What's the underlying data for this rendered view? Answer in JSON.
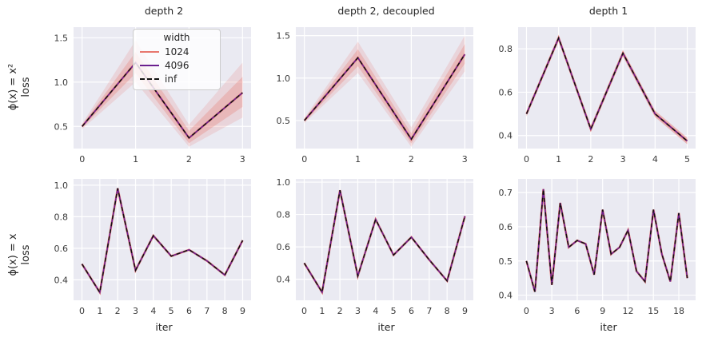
{
  "figure": {
    "legend": {
      "title": "width",
      "entries": [
        {
          "label": "1024",
          "color": "#e8776e",
          "dash": "solid"
        },
        {
          "label": "4096",
          "color": "#6a1f8f",
          "dash": "solid"
        },
        {
          "label": "inf",
          "color": "#111111",
          "dash": "dashed"
        }
      ]
    },
    "row_labels": [
      {
        "math": "ϕ(x) = x²",
        "sub": "loss"
      },
      {
        "math": "ϕ(x) = x",
        "sub": "loss"
      }
    ],
    "xlabel": "iter",
    "colors": {
      "plot_bg": "#eaeaf2",
      "grid": "#ffffff",
      "band": "#e8776e",
      "tick_text": "#3a3a3a"
    }
  },
  "chart_data": [
    {
      "type": "line",
      "title": "depth 2",
      "series_names": [
        "1024",
        "4096",
        "inf"
      ],
      "x": [
        0,
        1,
        2,
        3
      ],
      "values": [
        0.5,
        1.22,
        0.37,
        0.88
      ],
      "bands": [
        {
          "upper": [
            0.53,
            1.47,
            0.52,
            1.22
          ],
          "lower": [
            0.47,
            1.0,
            0.27,
            0.6
          ],
          "alpha": 0.18
        },
        {
          "upper": [
            0.515,
            1.34,
            0.45,
            1.06
          ],
          "lower": [
            0.485,
            1.1,
            0.31,
            0.72
          ],
          "alpha": 0.3
        }
      ],
      "xtick_vals": [
        0,
        1,
        2,
        3
      ],
      "xtick_labels": [
        "0",
        "1",
        "2",
        "3"
      ],
      "ytick_vals": [
        0.5,
        1.0,
        1.5
      ],
      "ytick_labels": [
        "0.5",
        "1.0",
        "1.5"
      ],
      "xlim": [
        -0.16,
        3.16
      ],
      "ylim": [
        0.25,
        1.62
      ]
    },
    {
      "type": "line",
      "title": "depth 2, decoupled",
      "series_names": [
        "1024",
        "4096",
        "inf"
      ],
      "x": [
        0,
        1,
        2,
        3
      ],
      "values": [
        0.5,
        1.24,
        0.28,
        1.28
      ],
      "bands": [
        {
          "upper": [
            0.53,
            1.43,
            0.42,
            1.5
          ],
          "lower": [
            0.47,
            1.06,
            0.19,
            1.08
          ],
          "alpha": 0.18
        },
        {
          "upper": [
            0.515,
            1.34,
            0.35,
            1.4
          ],
          "lower": [
            0.485,
            1.14,
            0.23,
            1.17
          ],
          "alpha": 0.3
        }
      ],
      "xtick_vals": [
        0,
        1,
        2,
        3
      ],
      "xtick_labels": [
        "0",
        "1",
        "2",
        "3"
      ],
      "ytick_vals": [
        0.5,
        1.0,
        1.5
      ],
      "ytick_labels": [
        "0.5",
        "1.0",
        "1.5"
      ],
      "xlim": [
        -0.16,
        3.16
      ],
      "ylim": [
        0.17,
        1.6
      ]
    },
    {
      "type": "line",
      "title": "depth 1",
      "series_names": [
        "1024",
        "4096",
        "inf"
      ],
      "x": [
        0,
        1,
        2,
        3,
        4,
        5
      ],
      "values": [
        0.5,
        0.85,
        0.43,
        0.78,
        0.5,
        0.375
      ],
      "bands": [
        {
          "upper": [
            0.512,
            0.865,
            0.445,
            0.795,
            0.515,
            0.39
          ],
          "lower": [
            0.488,
            0.835,
            0.415,
            0.765,
            0.485,
            0.36
          ],
          "alpha": 0.45
        }
      ],
      "xtick_vals": [
        0,
        1,
        2,
        3,
        4,
        5
      ],
      "xtick_labels": [
        "0",
        "1",
        "2",
        "3",
        "4",
        "5"
      ],
      "ytick_vals": [
        0.4,
        0.6,
        0.8
      ],
      "ytick_labels": [
        "0.4",
        "0.6",
        "0.8"
      ],
      "xlim": [
        -0.26,
        5.26
      ],
      "ylim": [
        0.34,
        0.9
      ]
    },
    {
      "type": "line",
      "title": "",
      "series_names": [
        "1024",
        "4096",
        "inf"
      ],
      "x": [
        0,
        1,
        2,
        3,
        4,
        5,
        6,
        7,
        8,
        9
      ],
      "values": [
        0.5,
        0.32,
        0.98,
        0.46,
        0.68,
        0.55,
        0.59,
        0.52,
        0.43,
        0.65
      ],
      "bands": [],
      "xtick_vals": [
        0,
        1,
        2,
        3,
        4,
        5,
        6,
        7,
        8,
        9
      ],
      "xtick_labels": [
        "0",
        "1",
        "2",
        "3",
        "4",
        "5",
        "6",
        "7",
        "8",
        "9"
      ],
      "ytick_vals": [
        0.4,
        0.6,
        0.8,
        1.0
      ],
      "ytick_labels": [
        "0.4",
        "0.6",
        "0.8",
        "1.0"
      ],
      "xlim": [
        -0.47,
        9.47
      ],
      "ylim": [
        0.27,
        1.04
      ]
    },
    {
      "type": "line",
      "title": "",
      "series_names": [
        "1024",
        "4096",
        "inf"
      ],
      "x": [
        0,
        1,
        2,
        3,
        4,
        5,
        6,
        7,
        8,
        9
      ],
      "values": [
        0.5,
        0.32,
        0.95,
        0.42,
        0.77,
        0.55,
        0.66,
        0.52,
        0.39,
        0.79
      ],
      "bands": [],
      "xtick_vals": [
        0,
        1,
        2,
        3,
        4,
        5,
        6,
        7,
        8,
        9
      ],
      "xtick_labels": [
        "0",
        "1",
        "2",
        "3",
        "4",
        "5",
        "6",
        "7",
        "8",
        "9"
      ],
      "ytick_vals": [
        0.4,
        0.6,
        0.8,
        1.0
      ],
      "ytick_labels": [
        "0.4",
        "0.6",
        "0.8",
        "1.0"
      ],
      "xlim": [
        -0.47,
        9.47
      ],
      "ylim": [
        0.27,
        1.02
      ]
    },
    {
      "type": "line",
      "title": "",
      "series_names": [
        "1024",
        "4096",
        "inf"
      ],
      "x": [
        0,
        1,
        2,
        3,
        4,
        5,
        6,
        7,
        8,
        9,
        10,
        11,
        12,
        13,
        14,
        15,
        16,
        17,
        18,
        19
      ],
      "values": [
        0.5,
        0.41,
        0.71,
        0.43,
        0.67,
        0.54,
        0.56,
        0.55,
        0.46,
        0.65,
        0.52,
        0.54,
        0.59,
        0.47,
        0.44,
        0.65,
        0.52,
        0.44,
        0.64,
        0.45
      ],
      "bands": [],
      "xtick_vals": [
        0,
        3,
        6,
        9,
        12,
        15,
        18
      ],
      "xtick_labels": [
        "0",
        "3",
        "6",
        "9",
        "12",
        "15",
        "18"
      ],
      "ytick_vals": [
        0.4,
        0.5,
        0.6,
        0.7
      ],
      "ytick_labels": [
        "0.4",
        "0.5",
        "0.6",
        "0.7"
      ],
      "xlim": [
        -0.98,
        19.98
      ],
      "ylim": [
        0.385,
        0.74
      ]
    }
  ]
}
